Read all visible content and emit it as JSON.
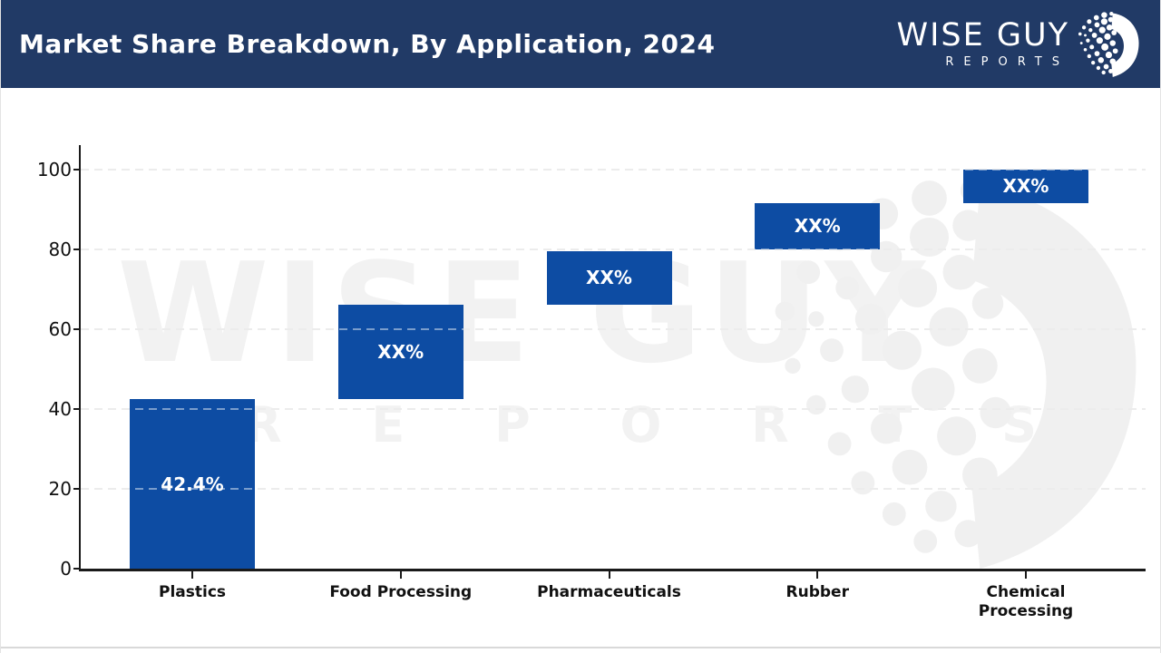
{
  "header": {
    "title": "Market Share Breakdown, By Application, 2024",
    "bg_color": "#213a66",
    "text_color": "#ffffff",
    "brand": {
      "line1": "WISE GUY",
      "line2": "REPORTS"
    }
  },
  "watermark": {
    "line1": "WISE GUY",
    "line2": "R E P O R T S"
  },
  "chart_data": {
    "type": "bar",
    "subtype": "waterfall",
    "title": "Market Share Breakdown, By Application, 2024",
    "categories": [
      "Plastics",
      "Food Processing",
      "Pharmaceuticals",
      "Rubber",
      "Chemical Processing"
    ],
    "axis_labels": [
      "Plastics",
      "Food Processing",
      "Pharmaceuticals",
      "Rubber",
      "Chemical\nProcessing"
    ],
    "bars": [
      {
        "category": "Plastics",
        "start": 0,
        "end": 42.4,
        "label": "42.4%"
      },
      {
        "category": "Food Processing",
        "start": 42.4,
        "end": 66.1,
        "label": "XX%"
      },
      {
        "category": "Pharmaceuticals",
        "start": 66.1,
        "end": 79.6,
        "label": "XX%"
      },
      {
        "category": "Rubber",
        "start": 80.1,
        "end": 91.6,
        "label": "XX%"
      },
      {
        "category": "Chemical Processing",
        "start": 91.7,
        "end": 100,
        "label": "XX%"
      }
    ],
    "ylim": [
      0,
      100
    ],
    "yticks": [
      0,
      20,
      40,
      60,
      80,
      100
    ],
    "grid": "dashed horizontal",
    "legend": "none",
    "bar_color": "#0d4ca3",
    "bar_label_color": "#ffffff",
    "axis_color": "#1a1a1a"
  }
}
